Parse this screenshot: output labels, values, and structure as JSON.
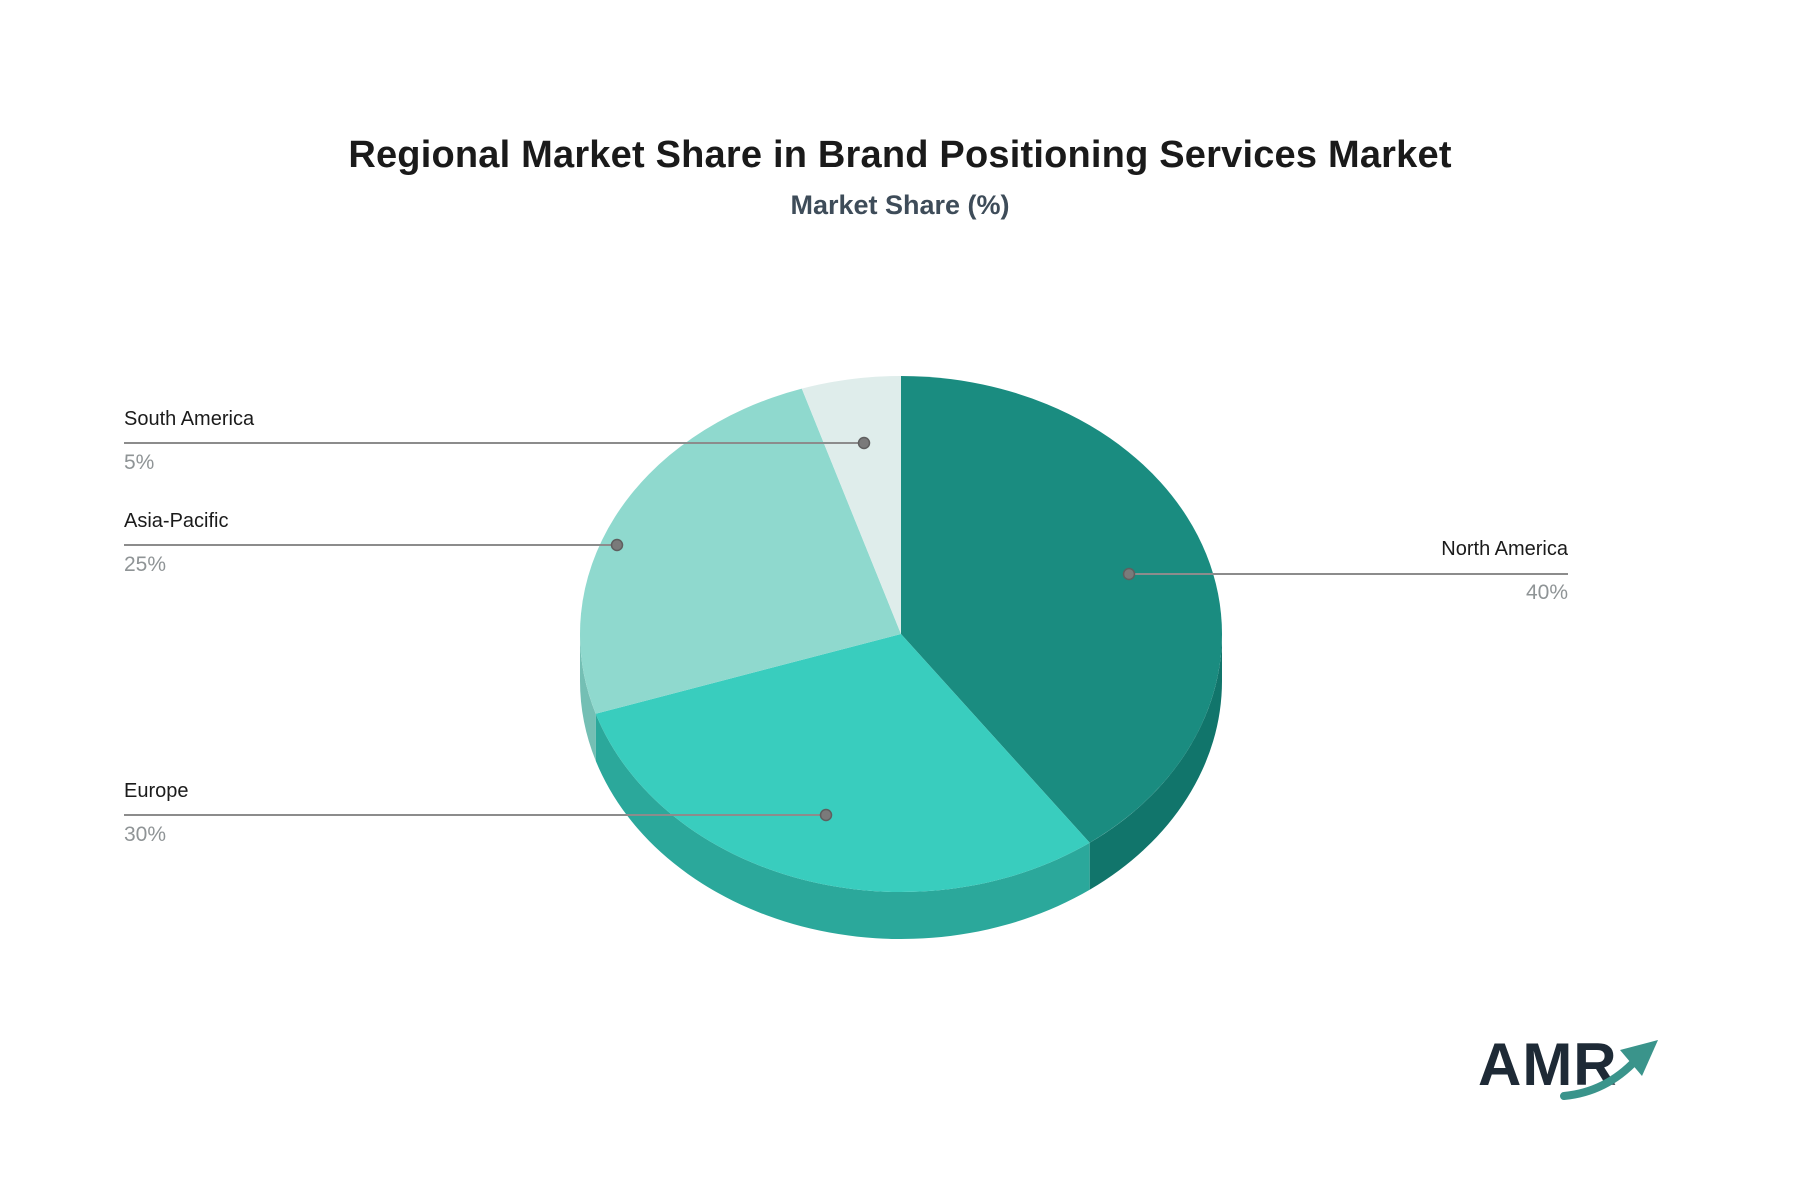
{
  "chart_data": {
    "type": "pie",
    "title": "Regional Market Share in Brand Positioning Services Market",
    "subtitle": "Market Share (%)",
    "legend_position": "none",
    "direction": "clockwise",
    "start_angle_deg": 0,
    "slices": [
      {
        "name": "North America",
        "value": 40,
        "value_label": "40%",
        "color": "#1A8C80",
        "side_color": "#11756B"
      },
      {
        "name": "Europe",
        "value": 30,
        "value_label": "30%",
        "color": "#39CDBE",
        "side_color": "#2BA89B"
      },
      {
        "name": "Asia-Pacific",
        "value": 25,
        "value_label": "25%",
        "color": "#8FD9CE",
        "side_color": "#74BFB4"
      },
      {
        "name": "South America",
        "value": 5,
        "value_label": "5%",
        "color": "#DFEDEB",
        "side_color": "#C4D9D6"
      }
    ],
    "label_color": "#1b1b1b",
    "value_color": "#8F9496",
    "connector_color": "#8C8C8C"
  },
  "logo": {
    "text": "AMR",
    "text_color": "#1E2A36",
    "arrow_color": "#3A948B"
  }
}
